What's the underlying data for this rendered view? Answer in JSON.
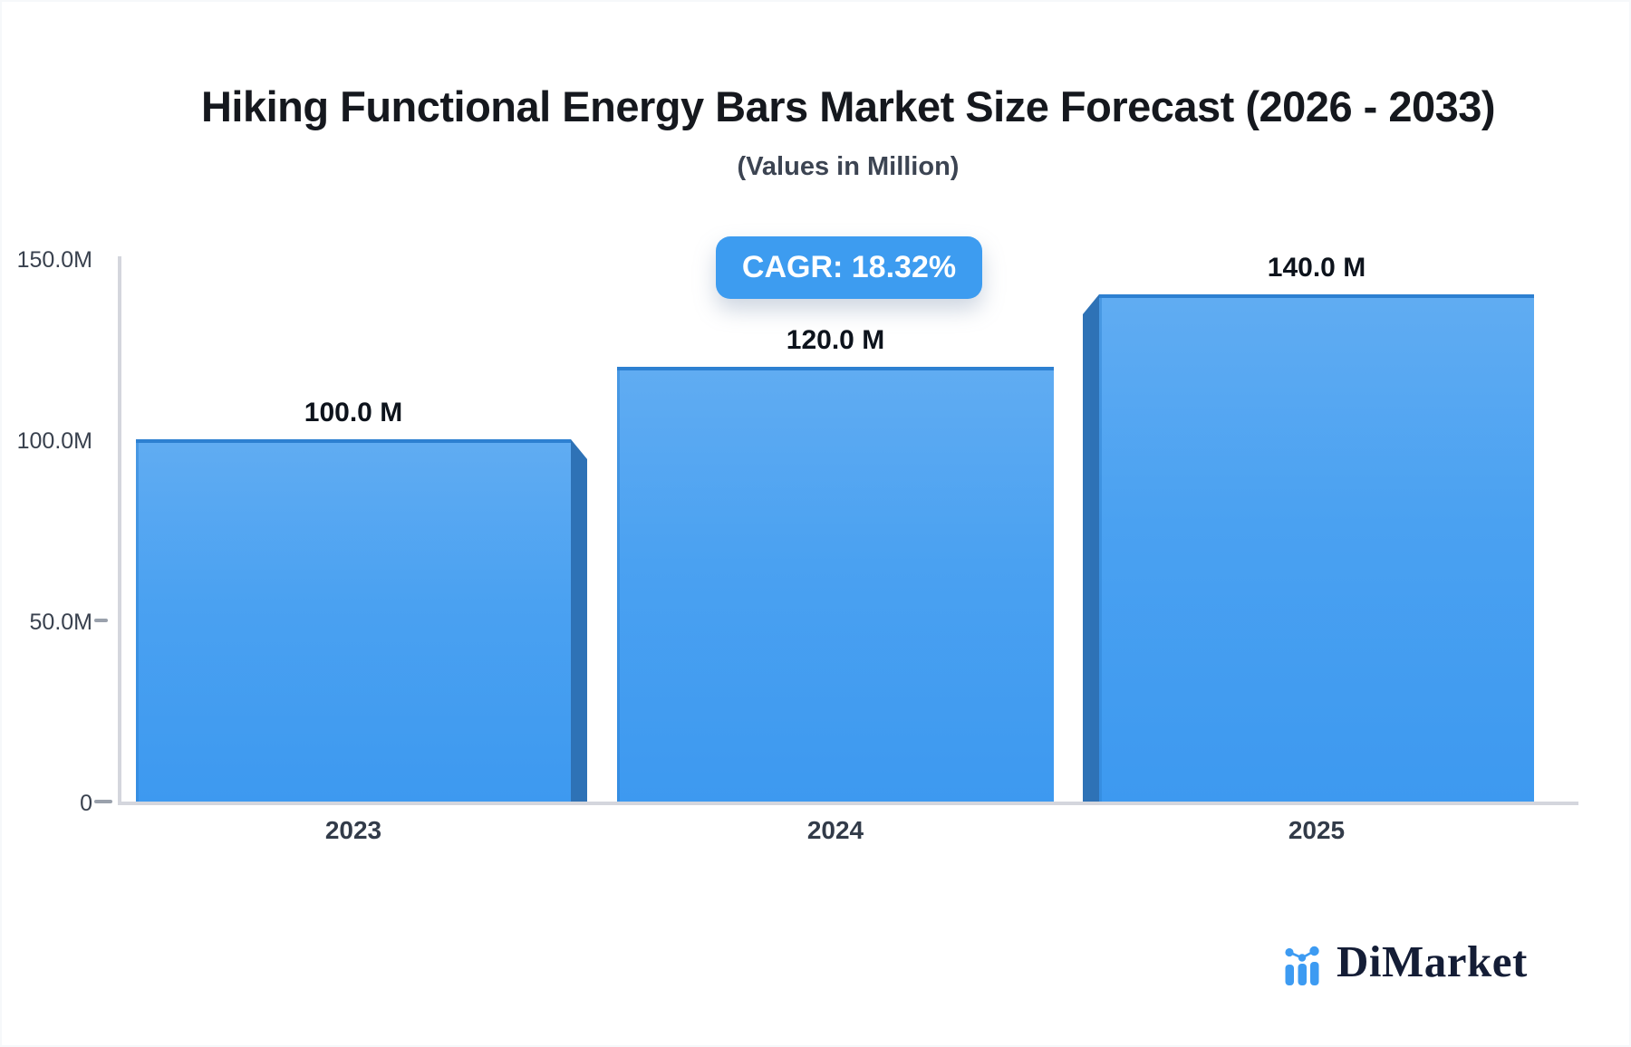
{
  "title": "Hiking Functional Energy Bars Market Size Forecast (2026 - 2033)",
  "subtitle": "(Values in Million)",
  "badge": {
    "label": "CAGR: 18.32%",
    "background": "#3d9cf0",
    "text_color": "#ffffff"
  },
  "chart_data": {
    "type": "bar",
    "title": "Hiking Functional Energy Bars Market Size Forecast (2026 - 2033)",
    "subtitle": "(Values in Million)",
    "unit": "Million",
    "categories": [
      "2023",
      "2024",
      "2025"
    ],
    "values": [
      100.0,
      120.0,
      140.0
    ],
    "bar_labels": [
      "100.0 M",
      "120.0 M",
      "140.0 M"
    ],
    "cagr_percent": 18.32,
    "xlabel": "",
    "ylabel": "",
    "ylim": [
      0,
      150
    ],
    "y_ticks": [
      {
        "label": "150.0M",
        "value": 150
      },
      {
        "label": "100.0M",
        "value": 100
      },
      {
        "label": "50.0M",
        "value": 50
      },
      {
        "label": "0",
        "value": 0
      }
    ],
    "grid": "off",
    "legend": "none",
    "colors": {
      "bar_gradient_top": "#60acf2",
      "bar_gradient_bottom": "#3d99f0",
      "bar_top_border": "#2d80d1",
      "bar_side_face": "#2e72b6",
      "axis_line": "#d4d6dd",
      "tick_mark": "#9aa1ac"
    }
  },
  "logo": {
    "name": "DiMarket",
    "icon": "dimarket-bar-chart-icon",
    "icon_color": "#3d9bf2",
    "text_color": "#141d36"
  }
}
